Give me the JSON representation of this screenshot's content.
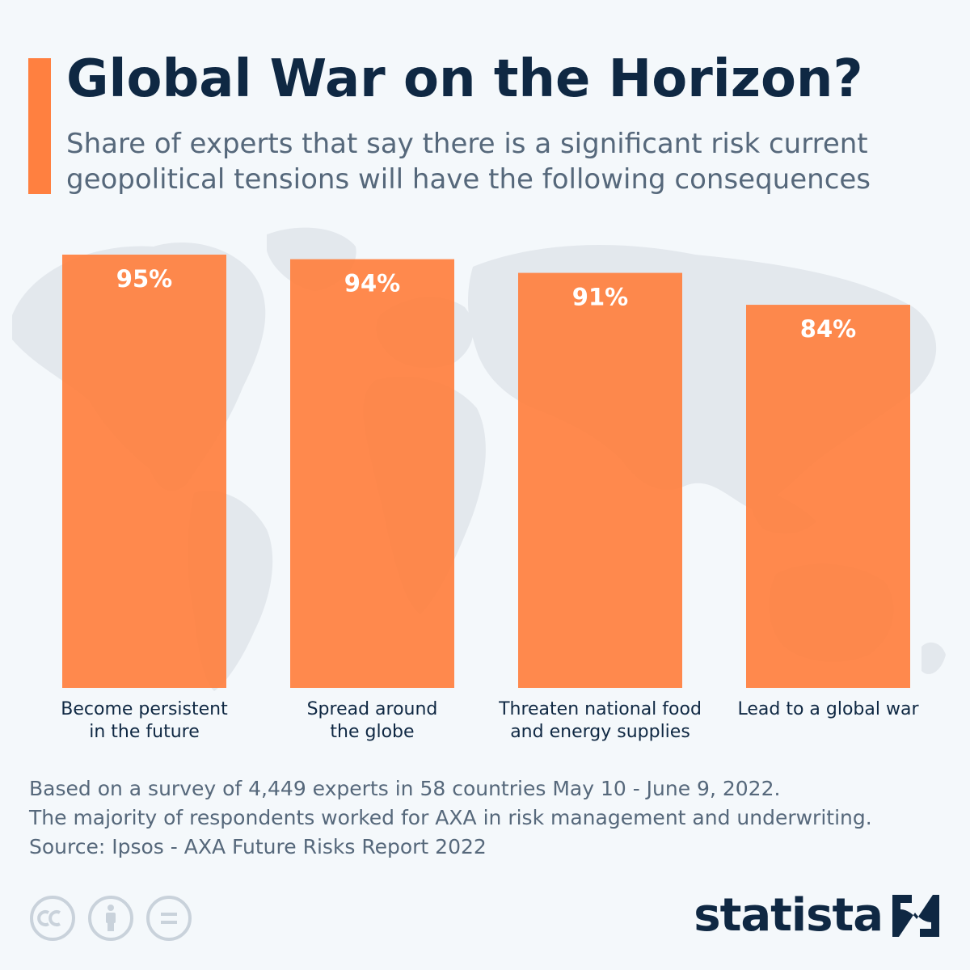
{
  "header": {
    "title": "Global War on the Horizon?",
    "subtitle": "Share of experts that say there is a significant risk current geopolitical tensions will have the following consequences"
  },
  "chart_data": {
    "type": "bar",
    "categories": [
      [
        "Become persistent",
        "in the future"
      ],
      [
        "Spread around",
        "the globe"
      ],
      [
        "Threaten national food",
        "and energy supplies"
      ],
      [
        "Lead to a global war"
      ]
    ],
    "values": [
      95,
      94,
      91,
      84
    ],
    "value_labels": [
      "95%",
      "94%",
      "91%",
      "84%"
    ],
    "unit": "%",
    "ylim": [
      0,
      95
    ],
    "grid": false,
    "bar_color": "#ff8040"
  },
  "footer": {
    "note_line1": "Based on a survey of 4,449 experts in 58 countries May 10 - June 9, 2022.",
    "note_line2": "The majority of respondents worked for AXA in risk management and underwriting.",
    "source": "Source: Ipsos - AXA Future Risks Report 2022",
    "logo_text": "statista",
    "license_icons": [
      "creative-commons-icon",
      "attribution-icon",
      "no-derivatives-icon"
    ]
  },
  "colors": {
    "background": "#f4f8fb",
    "accent": "#ff8040",
    "title": "#0f2843",
    "text": "#56687b",
    "map": "#e3e8ed"
  }
}
